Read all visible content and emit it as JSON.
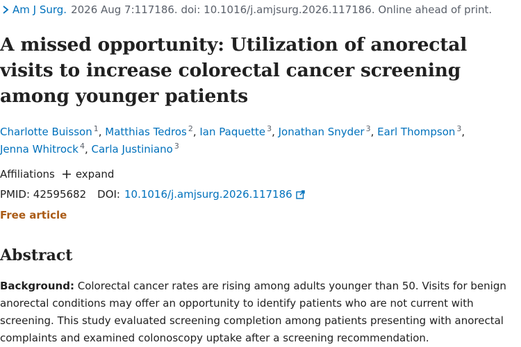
{
  "citation": {
    "journal": "Am J Surg.",
    "details": "2026 Aug 7:117186. doi: 10.1016/j.amjsurg.2026.117186. Online ahead of print."
  },
  "title": "A missed opportunity: Utilization of anorectal visits to increase colorectal cancer screening among younger patients",
  "authors": [
    {
      "name": "Charlotte Buisson",
      "aff": "1"
    },
    {
      "name": "Matthias Tedros",
      "aff": "2"
    },
    {
      "name": "Ian Paquette",
      "aff": "3"
    },
    {
      "name": "Jonathan Snyder",
      "aff": "3"
    },
    {
      "name": "Earl Thompson",
      "aff": "3"
    },
    {
      "name": "Jenna Whitrock",
      "aff": "4"
    },
    {
      "name": "Carla Justiniano",
      "aff": "3"
    }
  ],
  "affiliations": {
    "label": "Affiliations",
    "expand_label": "expand"
  },
  "ids": {
    "pmid": "PMID: 42595682",
    "doi_label": "DOI:",
    "doi_value": "10.1016/j.amjsurg.2026.117186"
  },
  "free_article": "Free article",
  "abstract": {
    "heading": "Abstract",
    "background_label": "Background:",
    "background_text": " Colorectal cancer rates are rising among adults younger than 50. Visits for benign anorectal conditions may offer an opportunity to identify patients who are not current with screening. This study evaluated screening completion among patients presenting with anorectal complaints and examined colonoscopy uptake after a screening recommendation."
  },
  "icons": {
    "chevron": "chevron-right-icon",
    "plus": "plus-icon",
    "external": "external-link-icon"
  },
  "colors": {
    "link": "#0071bc",
    "free_article": "#aa5b16",
    "muted": "#5b616b"
  }
}
